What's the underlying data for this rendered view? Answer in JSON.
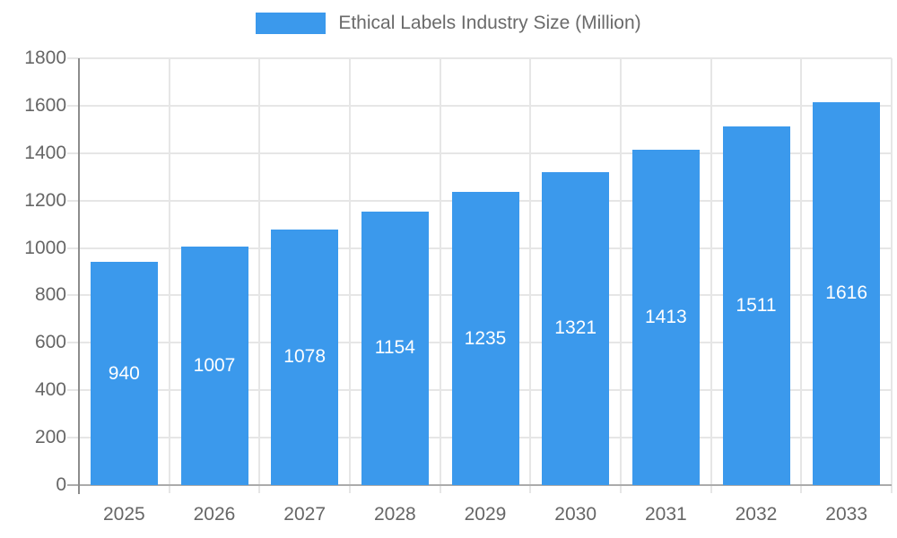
{
  "chart_data": {
    "type": "bar",
    "title": "Ethical Labels Industry Size (Million)",
    "categories": [
      "2025",
      "2026",
      "2027",
      "2028",
      "2029",
      "2030",
      "2031",
      "2032",
      "2033"
    ],
    "values": [
      940,
      1007,
      1078,
      1154,
      1235,
      1321,
      1413,
      1511,
      1616
    ],
    "series": [
      {
        "name": "Ethical Labels Industry Size (Million)",
        "values": [
          940,
          1007,
          1078,
          1154,
          1235,
          1321,
          1413,
          1511,
          1616
        ]
      }
    ],
    "xlabel": "",
    "ylabel": "",
    "ylim": [
      0,
      1800
    ],
    "ytick_step": 200,
    "ytick_labels": [
      "0",
      "200",
      "400",
      "600",
      "800",
      "1000",
      "1200",
      "1400",
      "1600",
      "1800"
    ],
    "grid": true,
    "legend_position": "top-center",
    "value_labels": "inside-center",
    "colors": {
      "bar": "#3B99EC",
      "value_label_text": "#FFFFFF",
      "axis_text": "#666666",
      "legend_text": "#6A6A6A",
      "gridline": "#E6E6E6",
      "y_axis_line": "#8C8C8C",
      "x_axis_line": "#ABABAB",
      "background": "#FFFFFF"
    }
  }
}
